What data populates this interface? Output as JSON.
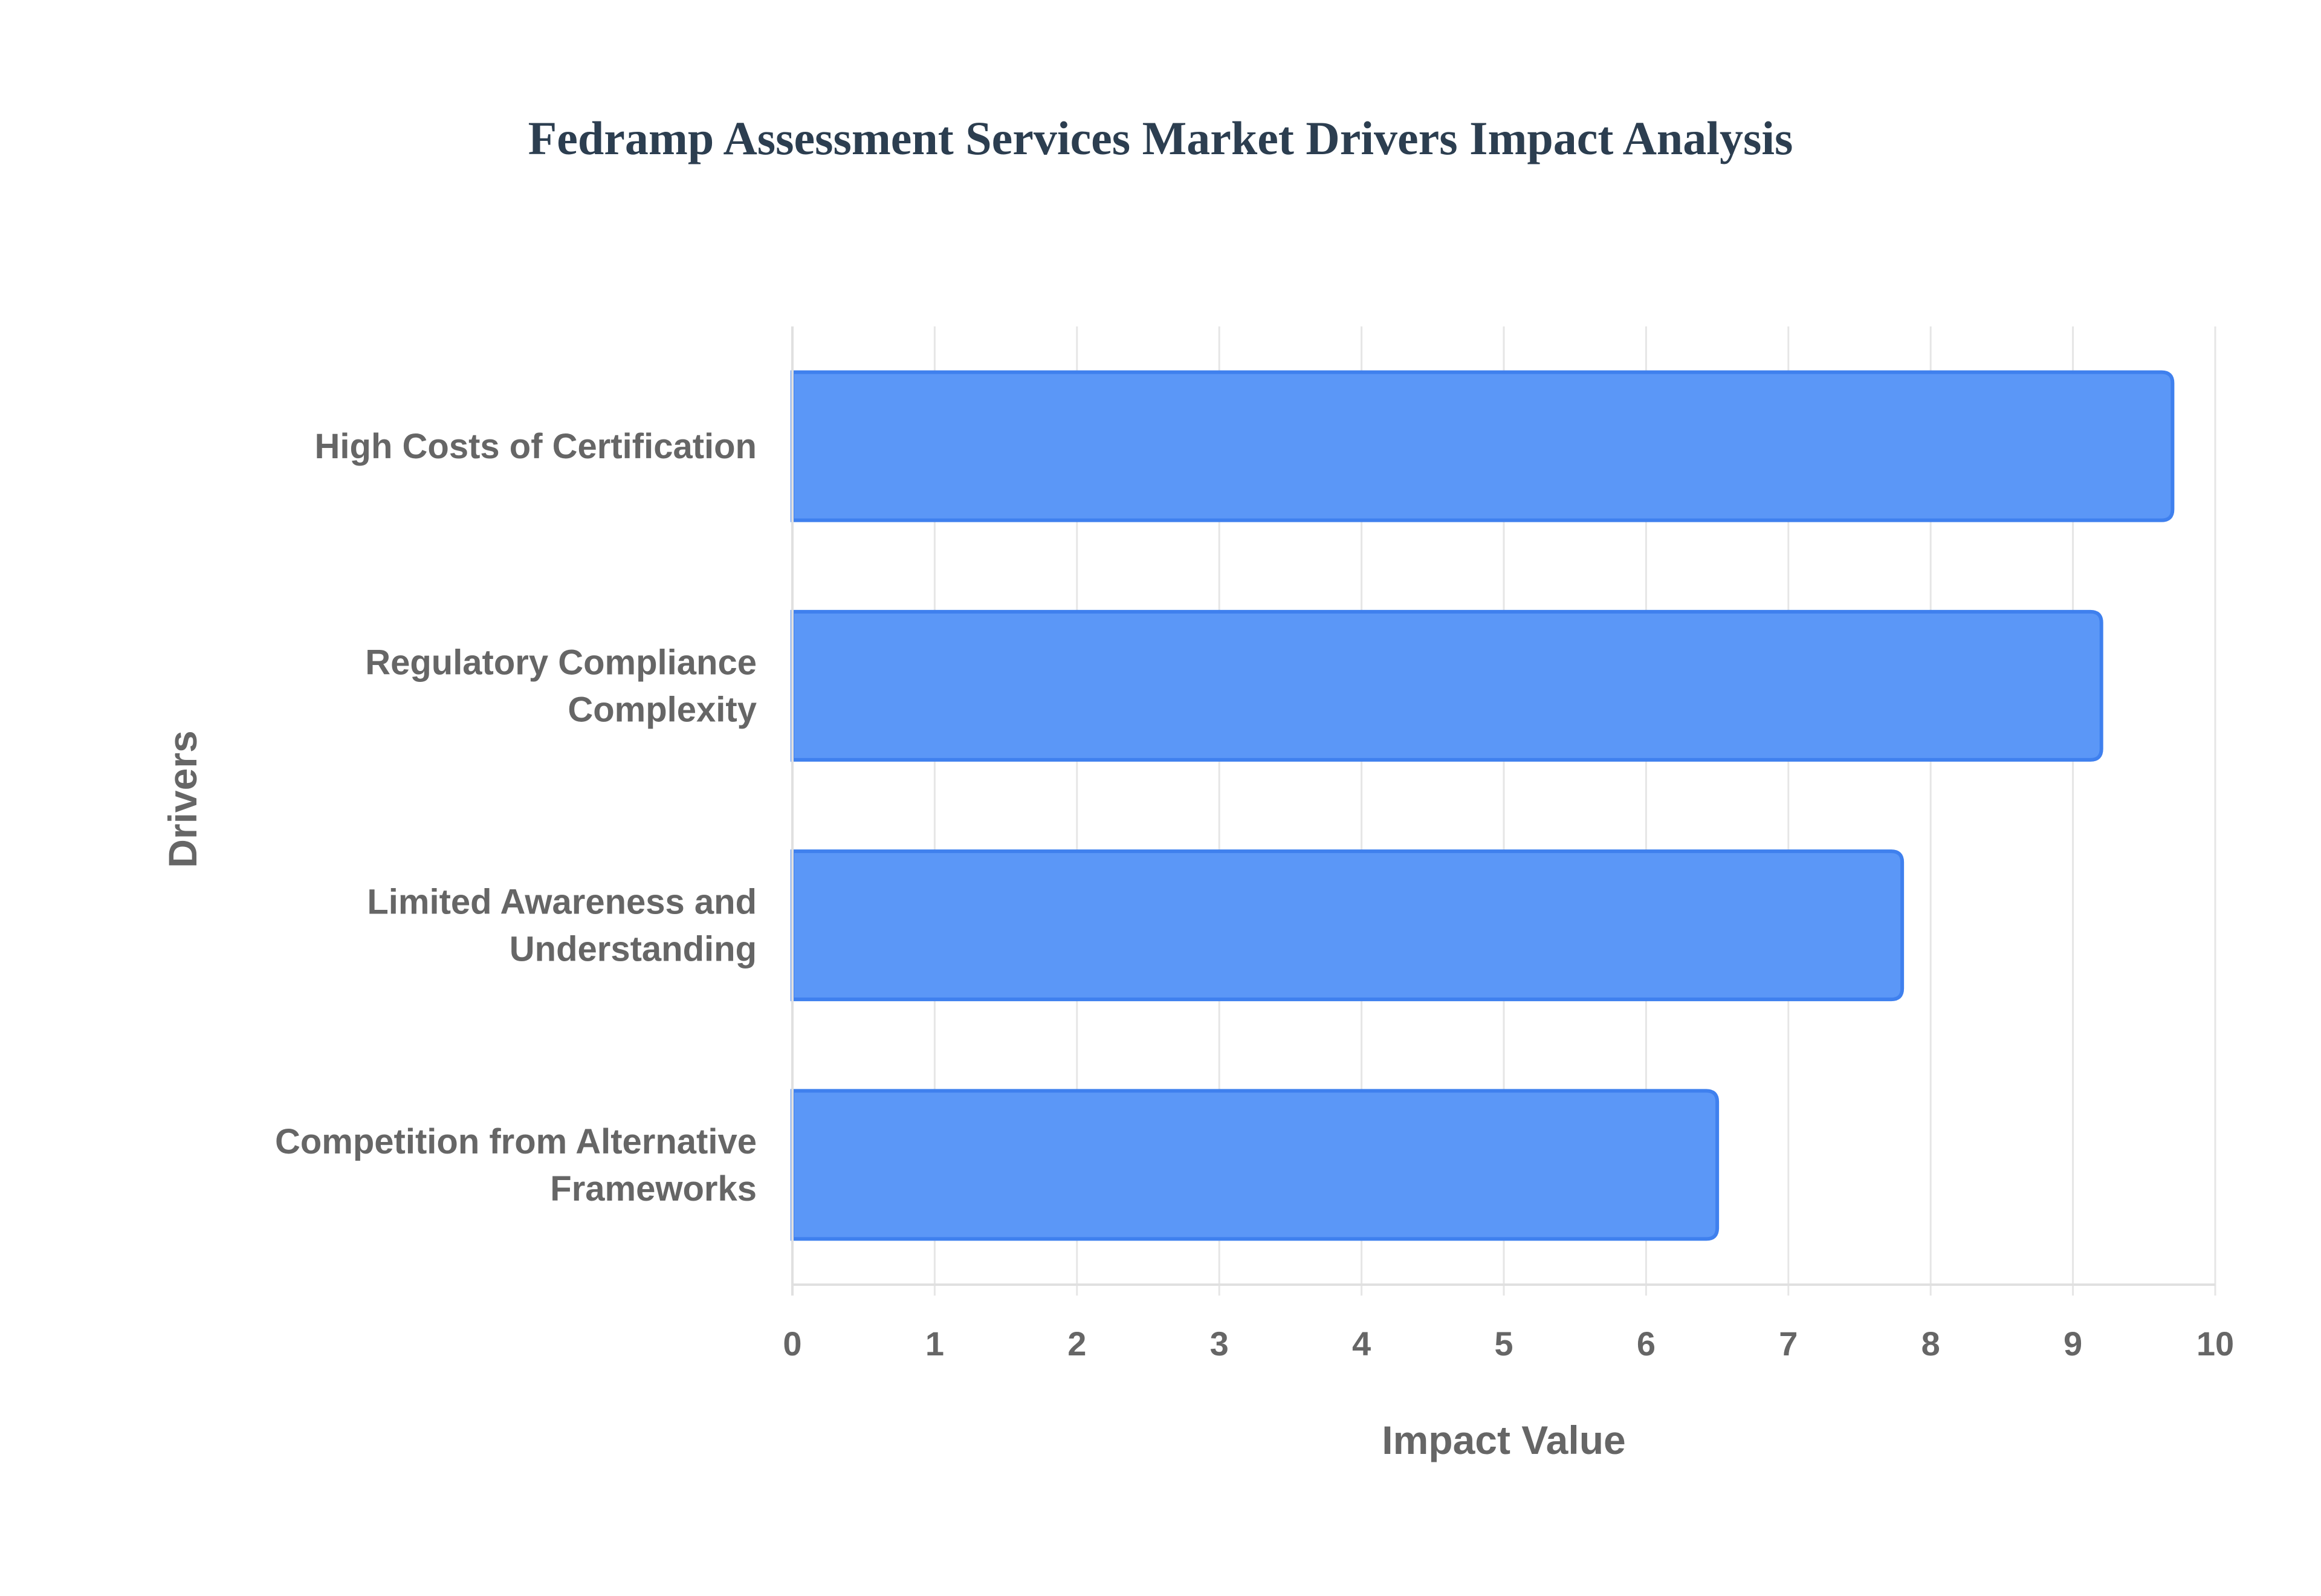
{
  "chart_data": {
    "type": "bar",
    "orientation": "horizontal",
    "title": "Fedramp Assessment Services Market Drivers Impact Analysis",
    "xlabel": "Impact Value",
    "ylabel": "Drivers",
    "xlim": [
      0,
      10
    ],
    "x_ticks": [
      "0",
      "1",
      "2",
      "3",
      "4",
      "5",
      "6",
      "7",
      "8",
      "9",
      "10"
    ],
    "grid": true,
    "legend": "none",
    "categories": [
      [
        "High Costs of Certification"
      ],
      [
        "Regulatory Compliance",
        "Complexity"
      ],
      [
        "Limited Awareness and",
        "Understanding"
      ],
      [
        "Competition from Alternative",
        "Frameworks"
      ]
    ],
    "values": [
      9.7,
      9.2,
      7.8,
      6.5
    ],
    "colors": {
      "bar_fill": "#5b97f7",
      "bar_stroke": "#3f80ee",
      "title": "#2c3e50",
      "text": "#666666",
      "grid": "#e6e6e6"
    }
  }
}
